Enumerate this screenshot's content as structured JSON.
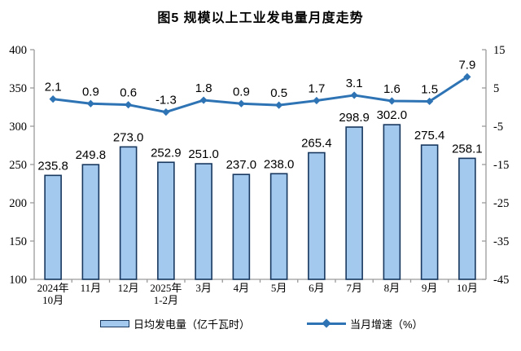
{
  "title": "图5  规模以上工业发电量月度走势",
  "chart_data": {
    "type": "bar",
    "subtype": "bar+line-dual-axis",
    "categories": [
      [
        "2024年",
        "10月"
      ],
      [
        "11月"
      ],
      [
        "12月"
      ],
      [
        "2025年",
        "1-2月"
      ],
      [
        "3月"
      ],
      [
        "4月"
      ],
      [
        "5月"
      ],
      [
        "6月"
      ],
      [
        "7月"
      ],
      [
        "8月"
      ],
      [
        "9月"
      ],
      [
        "10月"
      ]
    ],
    "series": [
      {
        "name": "日均发电量（亿千瓦时）",
        "type": "bar",
        "axis": "left",
        "values": [
          235.8,
          249.8,
          273.0,
          252.9,
          251.0,
          237.0,
          238.0,
          265.4,
          298.9,
          302.0,
          275.4,
          258.1
        ]
      },
      {
        "name": "当月增速（%）",
        "type": "line",
        "axis": "right",
        "values": [
          2.1,
          0.9,
          0.6,
          -1.3,
          1.8,
          0.9,
          0.5,
          1.7,
          3.1,
          1.6,
          1.5,
          7.9
        ]
      }
    ],
    "left_axis": {
      "min": 100,
      "max": 400,
      "step": 50,
      "ticks": [
        400,
        350,
        300,
        250,
        200,
        150,
        100
      ]
    },
    "right_axis": {
      "min": -45,
      "max": 15,
      "step": 10,
      "ticks": [
        15,
        5,
        -5,
        -15,
        -25,
        -35,
        -45
      ]
    },
    "legend_position": "bottom",
    "grid": false,
    "colors": {
      "bar_fill": "#A4C9EF",
      "bar_border": "#17375E",
      "line": "#2E74B5",
      "axis": "#9A9A9A",
      "text": "#000000"
    }
  }
}
